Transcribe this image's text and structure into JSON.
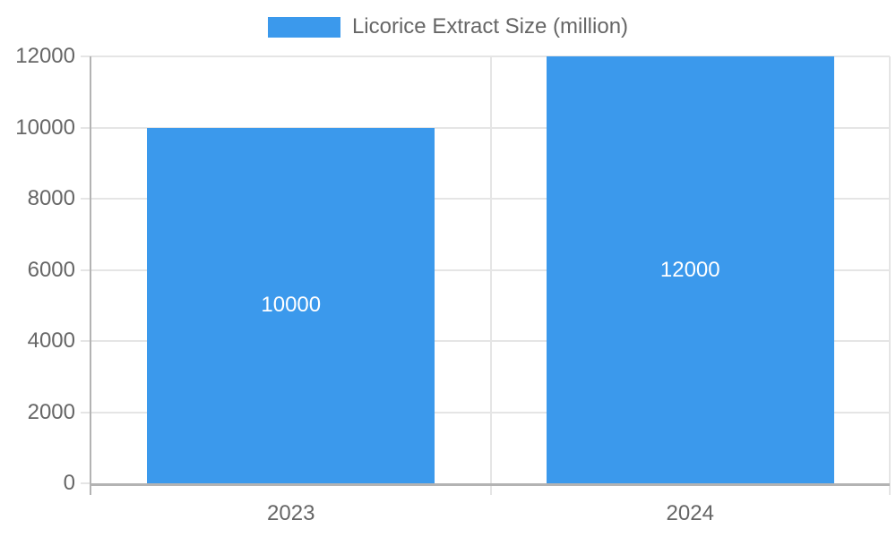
{
  "chart_data": {
    "type": "bar",
    "title": "",
    "legend_label": "Licorice Extract Size (million)",
    "legend_position": "top",
    "categories": [
      "2023",
      "2024"
    ],
    "series": [
      {
        "name": "Licorice Extract Size (million)",
        "values": [
          10000,
          12000
        ]
      }
    ],
    "bar_value_labels": [
      "10000",
      "12000"
    ],
    "xlabel": "",
    "ylabel": "",
    "ylim": [
      0,
      12000
    ],
    "y_ticks": [
      0,
      2000,
      4000,
      6000,
      8000,
      10000,
      12000
    ],
    "grid": true,
    "colors": {
      "bar": "#3b99ec",
      "grid": "#e5e5e5",
      "axis": "#b3b3b3",
      "tick_text": "#666666",
      "bar_label_text": "#ffffff",
      "background": "#ffffff"
    }
  }
}
